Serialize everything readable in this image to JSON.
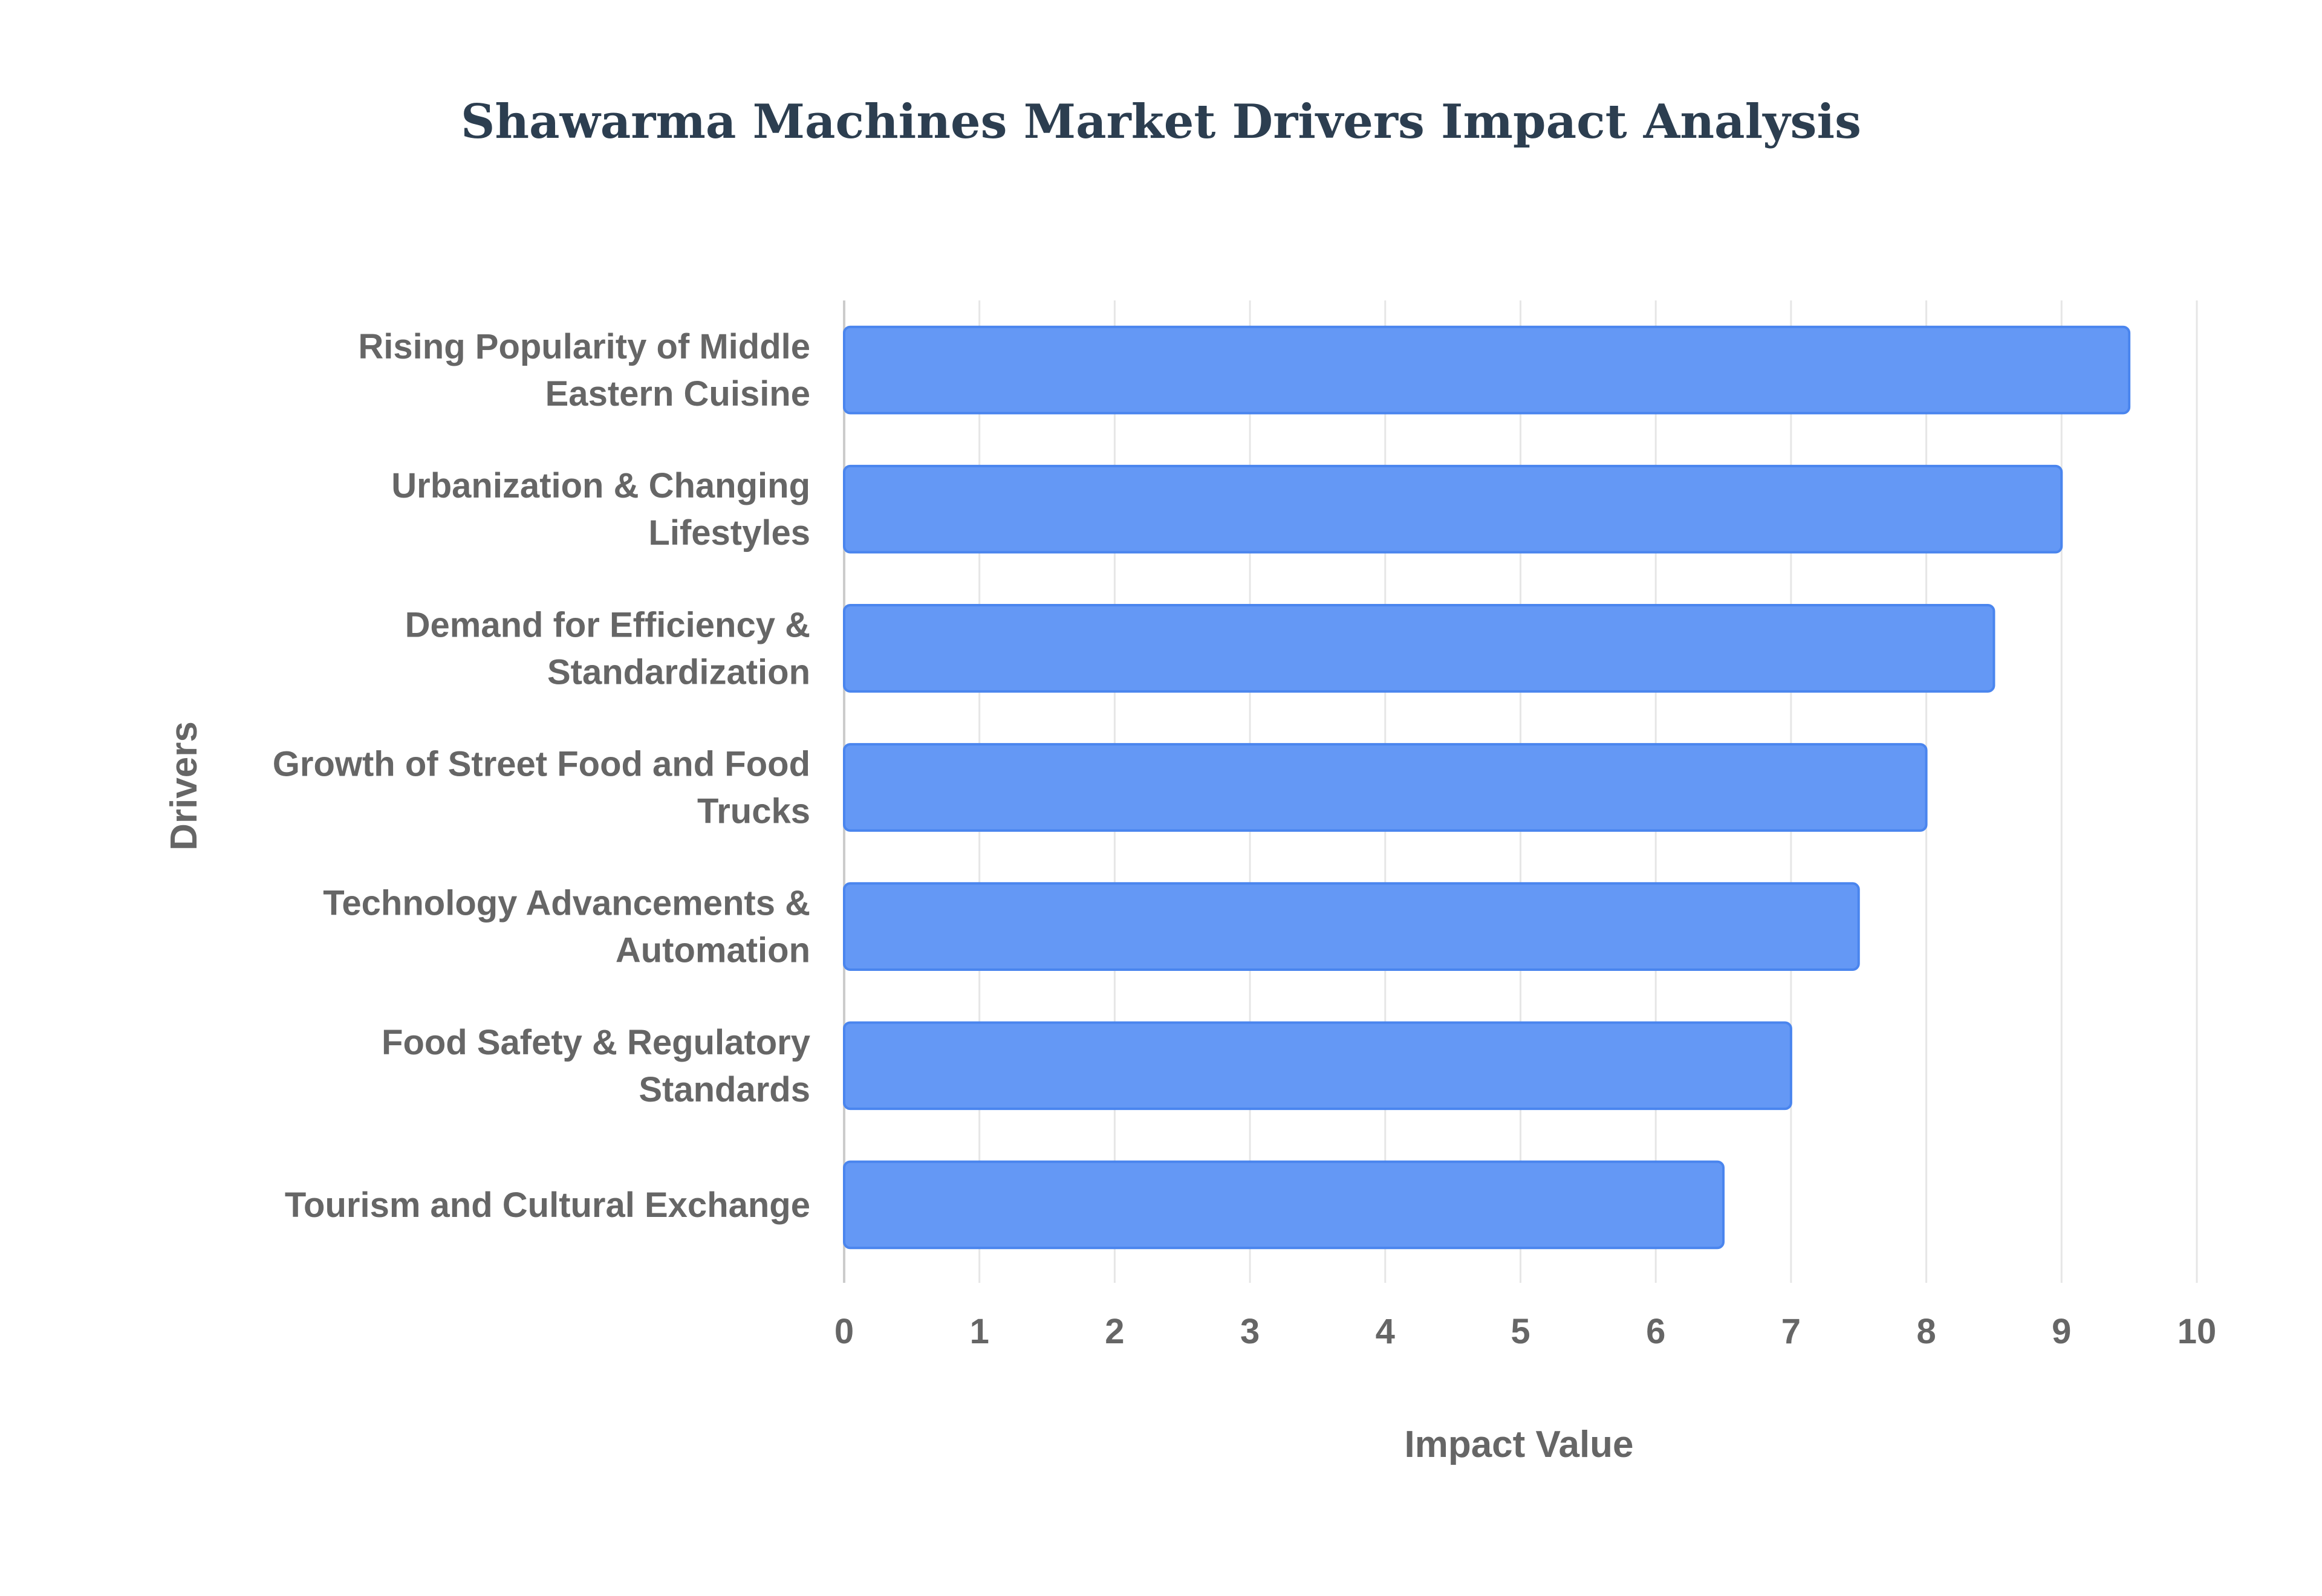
{
  "chart_data": {
    "type": "bar",
    "orientation": "horizontal",
    "title": "Shawarma Machines Market Drivers Impact Analysis",
    "xlabel": "Impact Value",
    "ylabel": "Drivers",
    "xlim": [
      0,
      10
    ],
    "x_ticks": [
      "0",
      "1",
      "2",
      "3",
      "4",
      "5",
      "6",
      "7",
      "8",
      "9",
      "10"
    ],
    "grid": true,
    "bar_color": "#6498f5",
    "bar_border_color": "#4a85ee",
    "categories": [
      [
        "Rising Popularity of Middle",
        "Eastern Cuisine"
      ],
      [
        "Urbanization & Changing",
        "Lifestyles"
      ],
      [
        "Demand for Efficiency &",
        "Standardization"
      ],
      [
        "Growth of Street Food and Food",
        "Trucks"
      ],
      [
        "Technology Advancements &",
        "Automation"
      ],
      [
        "Food Safety & Regulatory",
        "Standards"
      ],
      [
        "Tourism and Cultural Exchange"
      ]
    ],
    "values": [
      9.5,
      9.0,
      8.5,
      8.0,
      7.5,
      7.0,
      6.5
    ]
  }
}
